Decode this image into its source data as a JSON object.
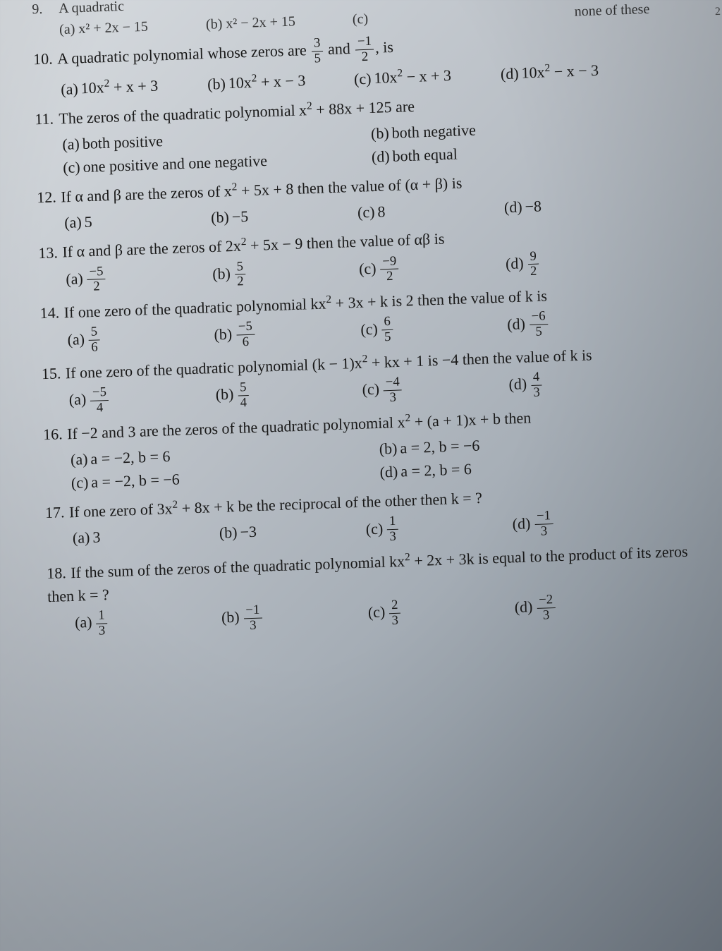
{
  "partial_q9": {
    "num": "9.",
    "stem": "A quadratic",
    "opts": [
      "(a) x² + 2x − 15",
      "(b) x² − 2x + 15",
      "(c)",
      "none of these"
    ]
  },
  "questions": [
    {
      "num": "10.",
      "stem_pre": "A quadratic polynomial whose zeros are ",
      "frac1": {
        "n": "3",
        "d": "5"
      },
      "mid": " and ",
      "frac2": {
        "n": "−1",
        "d": "2"
      },
      "stem_post": ", is",
      "opts": [
        {
          "label": "(a)",
          "text": "10x² + x + 3"
        },
        {
          "label": "(b)",
          "text": "10x² + x − 3"
        },
        {
          "label": "(c)",
          "text": "10x² − x + 3"
        },
        {
          "label": "(d)",
          "text": "10x² − x − 3"
        }
      ],
      "layout": "four"
    },
    {
      "num": "11.",
      "stem": "The zeros of the quadratic polynomial x² + 88x + 125 are",
      "opts": [
        {
          "label": "(a)",
          "text": "both positive"
        },
        {
          "label": "(b)",
          "text": "both negative"
        },
        {
          "label": "(c)",
          "text": "one positive and one negative"
        },
        {
          "label": "(d)",
          "text": "both equal"
        }
      ],
      "layout": "two"
    },
    {
      "num": "12.",
      "stem": "If α and β are the zeros of x² + 5x + 8 then the value of (α + β) is",
      "opts": [
        {
          "label": "(a)",
          "text": "5"
        },
        {
          "label": "(b)",
          "text": "−5"
        },
        {
          "label": "(c)",
          "text": "8"
        },
        {
          "label": "(d)",
          "text": "−8"
        }
      ],
      "layout": "four"
    },
    {
      "num": "13.",
      "stem": "If α and β are the zeros of 2x² + 5x − 9 then the value of αβ is",
      "opts": [
        {
          "label": "(a)",
          "frac": {
            "n": "−5",
            "d": "2"
          }
        },
        {
          "label": "(b)",
          "frac": {
            "n": "5",
            "d": "2"
          }
        },
        {
          "label": "(c)",
          "frac": {
            "n": "−9",
            "d": "2"
          }
        },
        {
          "label": "(d)",
          "frac": {
            "n": "9",
            "d": "2"
          }
        }
      ],
      "layout": "four"
    },
    {
      "num": "14.",
      "stem": "If one zero of the quadratic polynomial kx² + 3x + k is 2 then the value of k is",
      "opts": [
        {
          "label": "(a)",
          "frac": {
            "n": "5",
            "d": "6"
          }
        },
        {
          "label": "(b)",
          "frac": {
            "n": "−5",
            "d": "6"
          }
        },
        {
          "label": "(c)",
          "frac": {
            "n": "6",
            "d": "5"
          }
        },
        {
          "label": "(d)",
          "frac": {
            "n": "−6",
            "d": "5"
          }
        }
      ],
      "layout": "four"
    },
    {
      "num": "15.",
      "stem": "If one zero of the quadratic polynomial (k − 1)x² + kx + 1 is −4 then the value of k is",
      "opts": [
        {
          "label": "(a)",
          "frac": {
            "n": "−5",
            "d": "4"
          }
        },
        {
          "label": "(b)",
          "frac": {
            "n": "5",
            "d": "4"
          }
        },
        {
          "label": "(c)",
          "frac": {
            "n": "−4",
            "d": "3"
          }
        },
        {
          "label": "(d)",
          "frac": {
            "n": "4",
            "d": "3"
          }
        }
      ],
      "layout": "four"
    },
    {
      "num": "16.",
      "stem": "If −2 and 3 are the zeros of the quadratic polynomial x² + (a + 1)x + b then",
      "opts": [
        {
          "label": "(a)",
          "text": "a = −2, b = 6"
        },
        {
          "label": "(b)",
          "text": "a = 2, b = −6"
        },
        {
          "label": "(c)",
          "text": "a = −2, b = −6"
        },
        {
          "label": "(d)",
          "text": "a = 2, b = 6"
        }
      ],
      "layout": "two"
    },
    {
      "num": "17.",
      "stem": "If one zero of 3x² + 8x + k be the reciprocal of the other then k = ?",
      "opts": [
        {
          "label": "(a)",
          "text": "3"
        },
        {
          "label": "(b)",
          "text": "−3"
        },
        {
          "label": "(c)",
          "frac": {
            "n": "1",
            "d": "3"
          }
        },
        {
          "label": "(d)",
          "frac": {
            "n": "−1",
            "d": "3"
          }
        }
      ],
      "layout": "four"
    },
    {
      "num": "18.",
      "stem": "If the sum of the zeros of the quadratic polynomial kx² + 2x + 3k is equal to the product of its zeros then k = ?",
      "opts": [
        {
          "label": "(a)",
          "frac": {
            "n": "1",
            "d": "3"
          }
        },
        {
          "label": "(b)",
          "frac": {
            "n": "−1",
            "d": "3"
          }
        },
        {
          "label": "(c)",
          "frac": {
            "n": "2",
            "d": "3"
          }
        },
        {
          "label": "(d)",
          "frac": {
            "n": "−2",
            "d": "3"
          }
        }
      ],
      "layout": "four"
    }
  ],
  "edge_text": "2"
}
